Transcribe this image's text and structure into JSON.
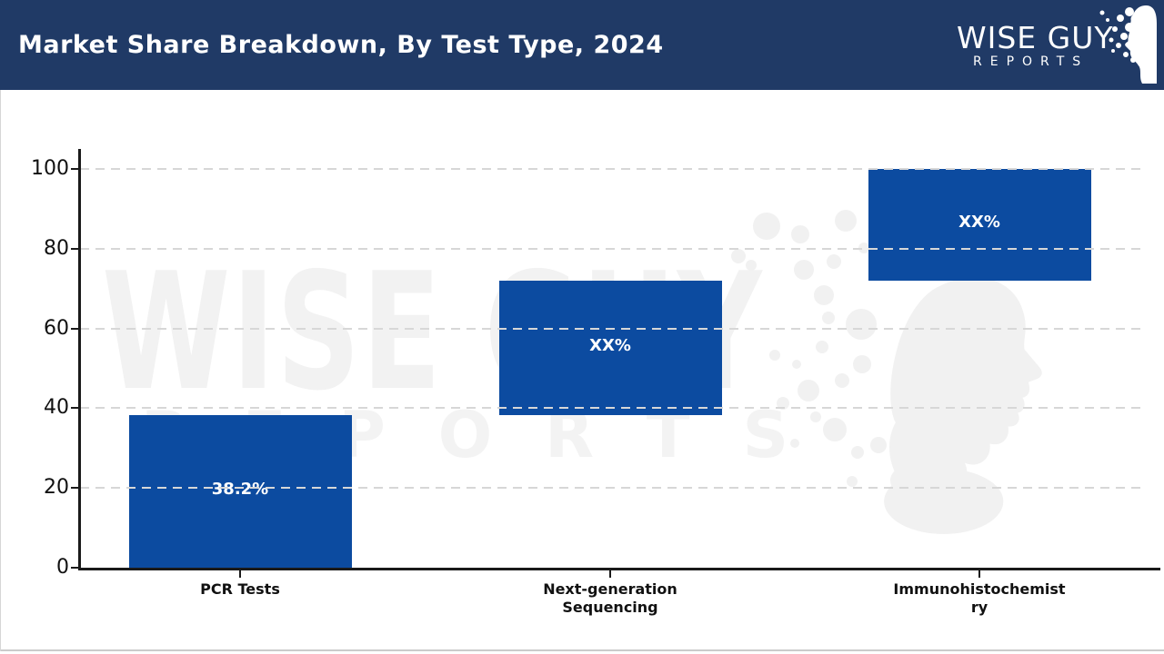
{
  "header": {
    "title": "Market Share Breakdown, By Test Type, 2024",
    "bg_color": "#203a66",
    "brand": {
      "line1": "WISE GUY",
      "line2": "REPORTS"
    }
  },
  "watermark": {
    "line1": "WISE GUY",
    "line2": "REPORTS"
  },
  "chart_data": {
    "type": "bar",
    "variant": "cumulative-floating-bars",
    "title": "Market Share Breakdown, By Test Type, 2024",
    "categories": [
      "PCR Tests",
      "Next-generation Sequencing",
      "Immunohistochemistry"
    ],
    "category_label_lines": [
      [
        "PCR Tests"
      ],
      [
        "Next-generation",
        "Sequencing"
      ],
      [
        "Immunohistochemist",
        "ry"
      ]
    ],
    "segments": [
      {
        "category": "PCR Tests",
        "start": 0,
        "end": 38.2,
        "label": "38.2%"
      },
      {
        "category": "Next-generation Sequencing",
        "start": 38.2,
        "end": 72,
        "label": "XX%"
      },
      {
        "category": "Immunohistochemistry",
        "start": 72,
        "end": 100,
        "label": "XX%"
      }
    ],
    "yticks": [
      0,
      20,
      40,
      60,
      80,
      100
    ],
    "ylim": [
      0,
      105
    ],
    "xlabel": "",
    "ylabel": "",
    "grid": "dashed-horizontal",
    "legend": "none",
    "bar_color": "#0c4ba0",
    "value_label_color": "#ffffff",
    "axis_color": "#1a1a1a",
    "gridline_color": "#d7d7d7"
  }
}
